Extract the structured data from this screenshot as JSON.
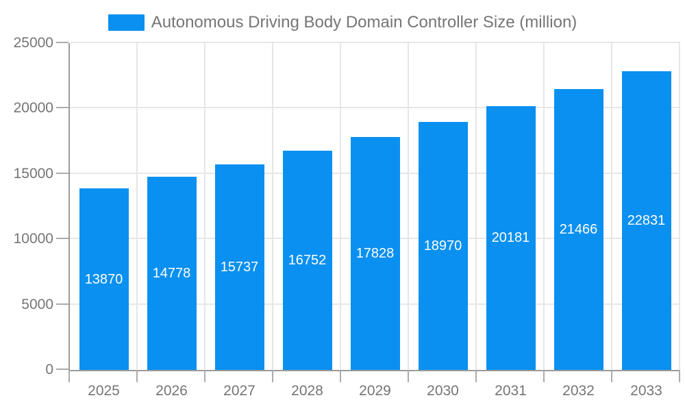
{
  "legend": {
    "label": "Autonomous Driving Body Domain Controller Size (million)"
  },
  "chart_data": {
    "type": "bar",
    "title": "Autonomous Driving Body Domain Controller Size (million)",
    "categories": [
      "2025",
      "2026",
      "2027",
      "2028",
      "2029",
      "2030",
      "2031",
      "2032",
      "2033"
    ],
    "values": [
      13870,
      14778,
      15737,
      16752,
      17828,
      18970,
      20181,
      21466,
      22831
    ],
    "xlabel": "",
    "ylabel": "",
    "ylim": [
      0,
      25000
    ],
    "yticks": [
      0,
      5000,
      10000,
      15000,
      20000,
      25000
    ],
    "grid": true,
    "legend_position": "top",
    "value_labels": "inside-center"
  },
  "colors": {
    "bar": "#0a90f0",
    "value_label": "#ffffff",
    "axis": "#9a9a9a",
    "gridline": "#e6e6e6",
    "text": "#757575",
    "background": "#ffffff"
  }
}
